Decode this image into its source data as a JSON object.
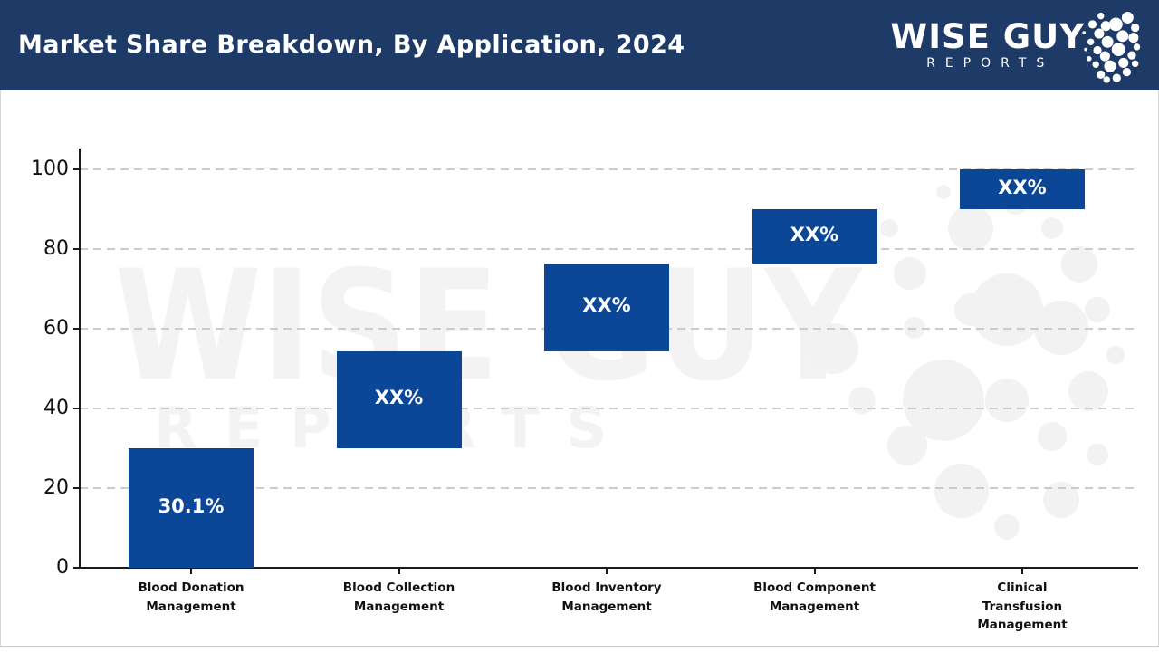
{
  "header": {
    "title": "Market Share Breakdown, By Application, 2024",
    "logo": {
      "name": "WISE GUY",
      "subtitle": "REPORTS"
    }
  },
  "watermark": {
    "line1": "WISE GUY",
    "line2": "REPORTS"
  },
  "colors": {
    "header_bg": "#1e3a66",
    "bar_blue": "#0b4697",
    "grid": "#cccccc",
    "axis": "#1a1a1a",
    "value_label_text": "#ffffff",
    "watermark_gray": "#f3f3f3"
  },
  "chart_data": {
    "type": "bar",
    "subtype": "waterfall",
    "title": "Market Share Breakdown, By Application, 2024",
    "xlabel": "",
    "ylabel": "",
    "ylim": [
      0,
      105
    ],
    "yticks": [
      0,
      20,
      40,
      60,
      80,
      100
    ],
    "grid": "horizontal dashed",
    "legend": "none",
    "categories": [
      "Blood Donation Management",
      "Blood Collection Management",
      "Blood Inventory Management",
      "Blood Component Management",
      "Clinical Transfusion Management"
    ],
    "category_lines": [
      [
        "Blood Donation",
        "Management"
      ],
      [
        "Blood Collection",
        "Management"
      ],
      [
        "Blood Inventory",
        "Management"
      ],
      [
        "Blood Component",
        "Management"
      ],
      [
        "Clinical",
        "Transfusion",
        "Management"
      ]
    ],
    "segments": [
      {
        "category": "Blood Donation Management",
        "start": 0,
        "end": 30.1,
        "value": 30.1,
        "label": "30.1%"
      },
      {
        "category": "Blood Collection Management",
        "start": 30.1,
        "end": 54.3,
        "value": 24.2,
        "label": "XX%"
      },
      {
        "category": "Blood Inventory Management",
        "start": 54.3,
        "end": 76.4,
        "value": 22.1,
        "label": "XX%"
      },
      {
        "category": "Blood Component Management",
        "start": 76.4,
        "end": 90.0,
        "value": 13.6,
        "label": "XX%"
      },
      {
        "category": "Clinical Transfusion Management",
        "start": 90.0,
        "end": 100.0,
        "value": 10.0,
        "label": "XX%"
      }
    ]
  }
}
